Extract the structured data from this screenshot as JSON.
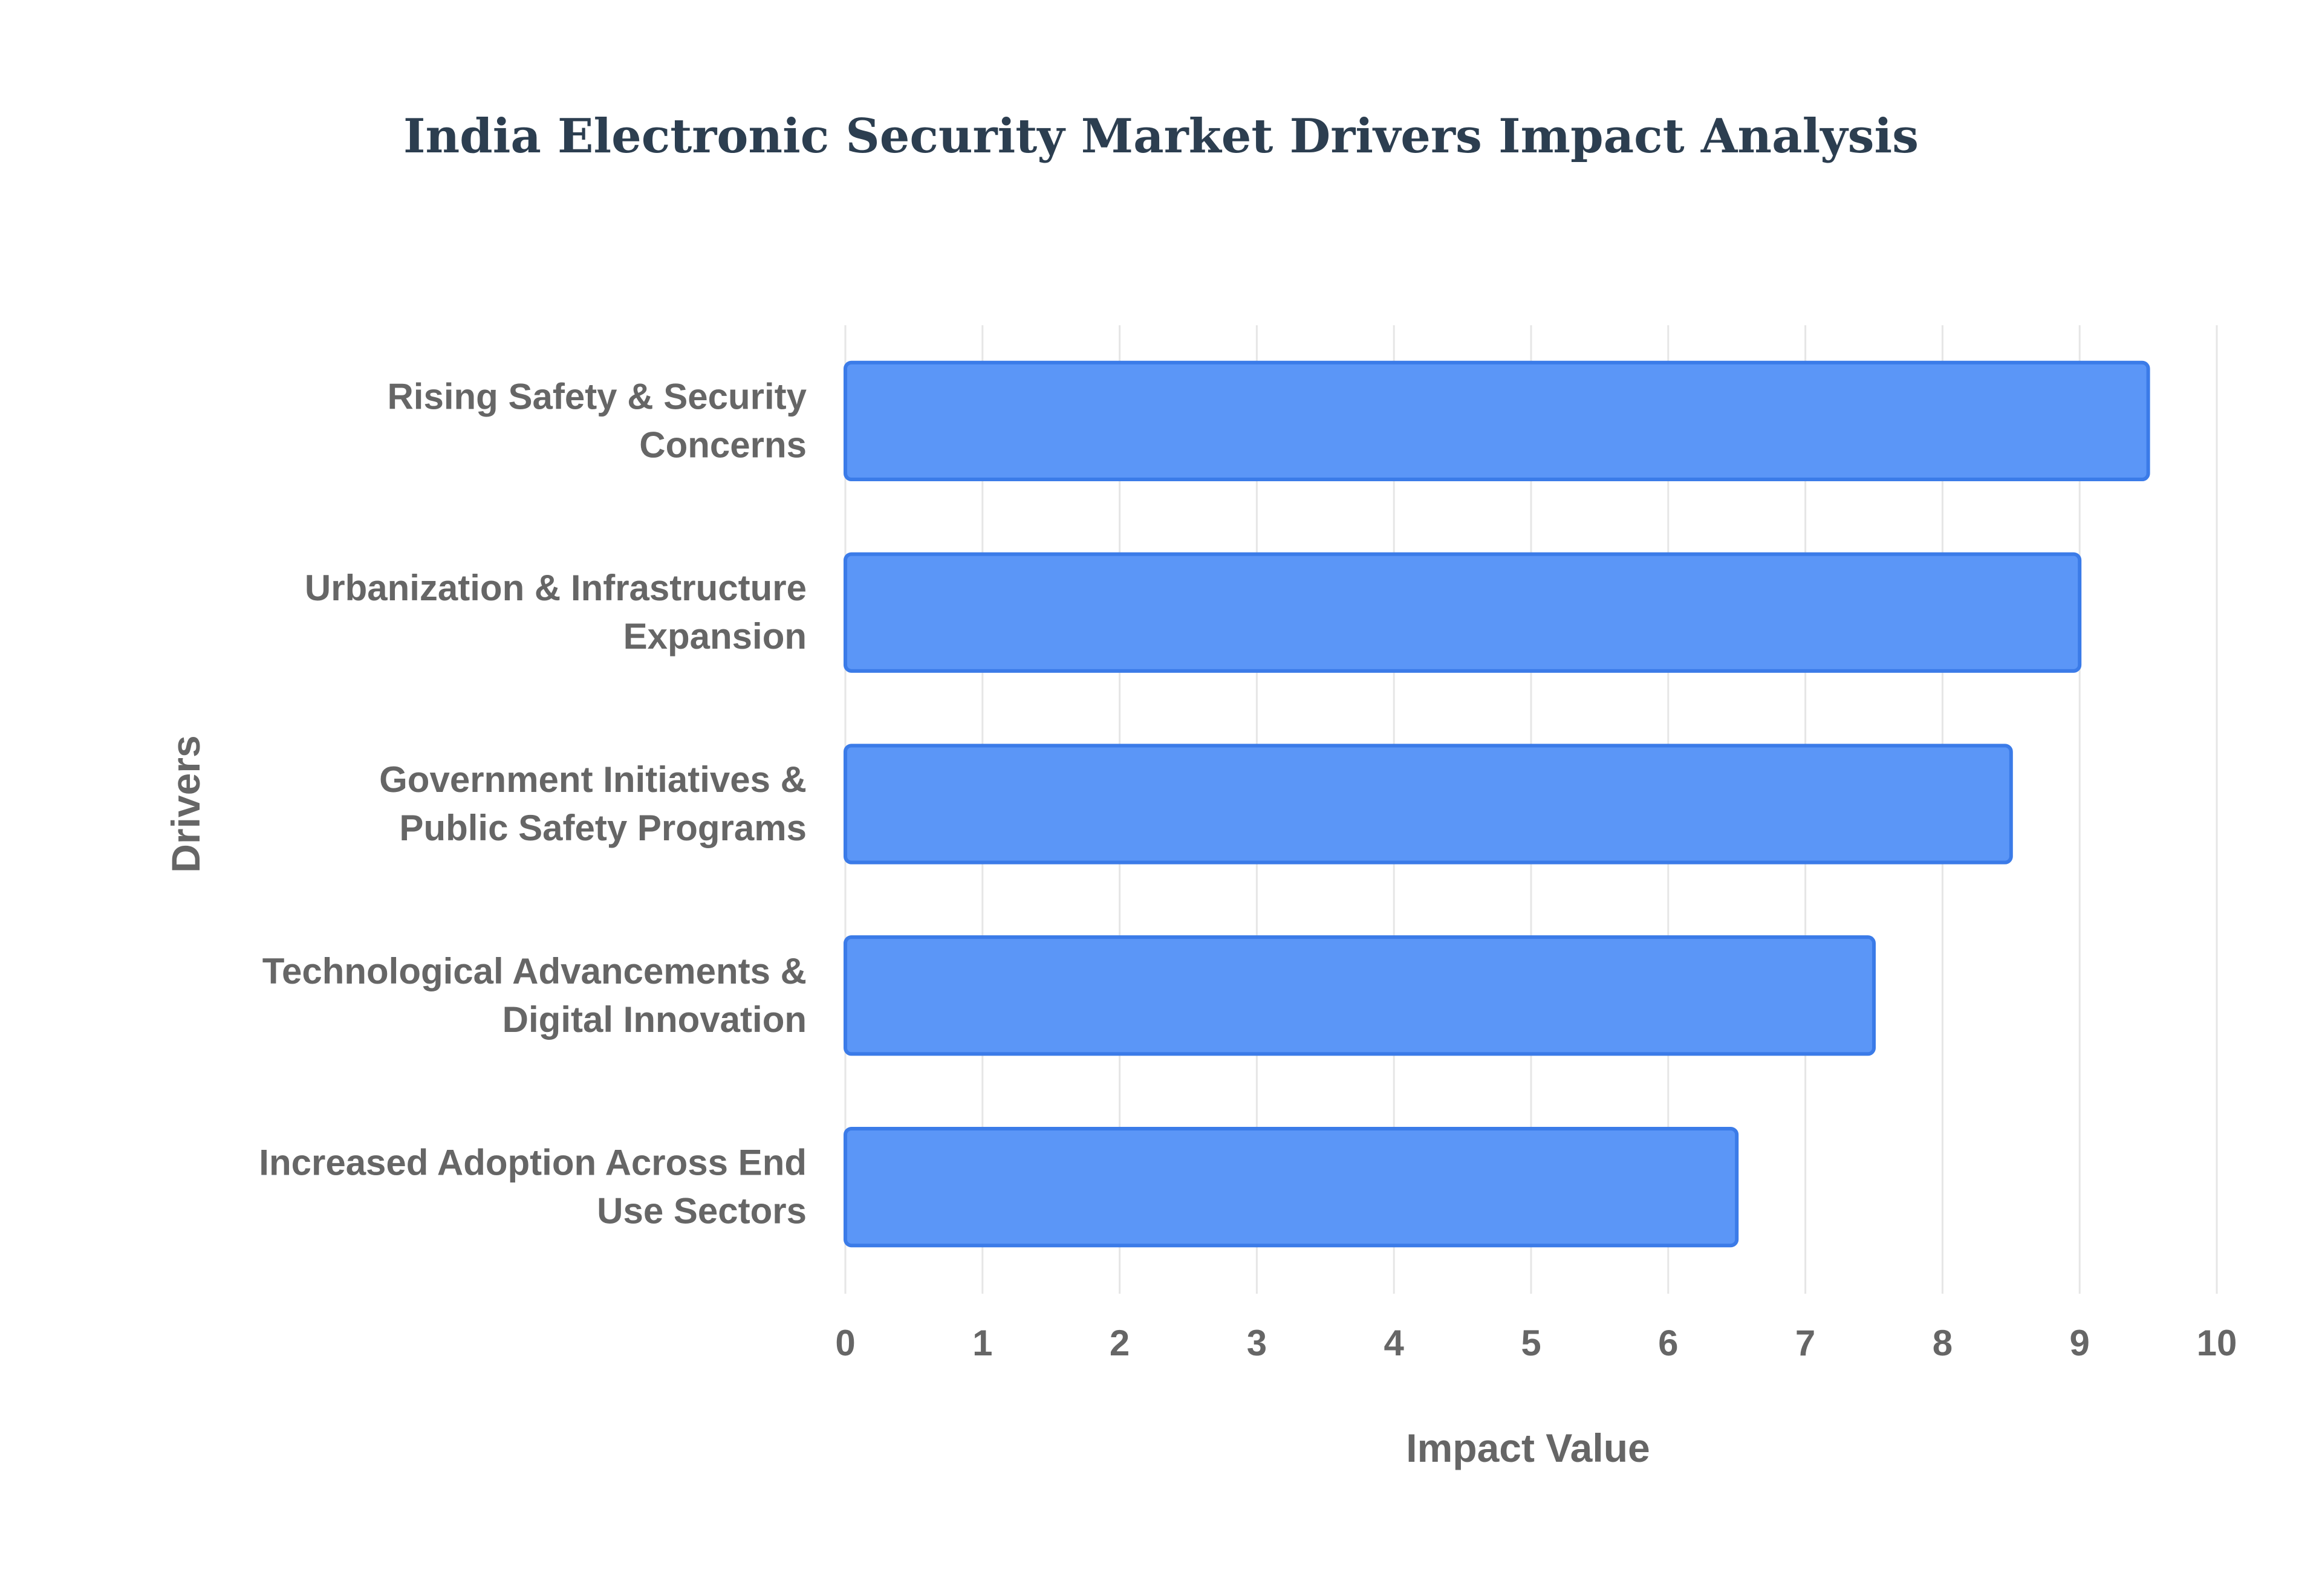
{
  "chart_data": {
    "type": "bar",
    "orientation": "horizontal",
    "title": "India Electronic Security Market Drivers Impact Analysis",
    "xlabel": "Impact Value",
    "ylabel": "Drivers",
    "xlim": [
      0,
      10
    ],
    "x_ticks": [
      0,
      1,
      2,
      3,
      4,
      5,
      6,
      7,
      8,
      9,
      10
    ],
    "categories": [
      [
        "Rising Safety & Security",
        "Concerns"
      ],
      [
        "Urbanization & Infrastructure",
        "Expansion"
      ],
      [
        "Government Initiatives &",
        "Public Safety Programs"
      ],
      [
        "Technological Advancements &",
        "Digital Innovation"
      ],
      [
        "Increased Adoption Across End",
        "Use Sectors"
      ]
    ],
    "values": [
      9.5,
      9.0,
      8.5,
      7.5,
      6.5
    ],
    "grid": true,
    "legend": "none",
    "colors": {
      "bar_fill": "#5b96f7",
      "bar_border": "#3b7be8",
      "title": "#2c3e50",
      "text": "#666666",
      "grid": "#e6e6e6"
    }
  }
}
